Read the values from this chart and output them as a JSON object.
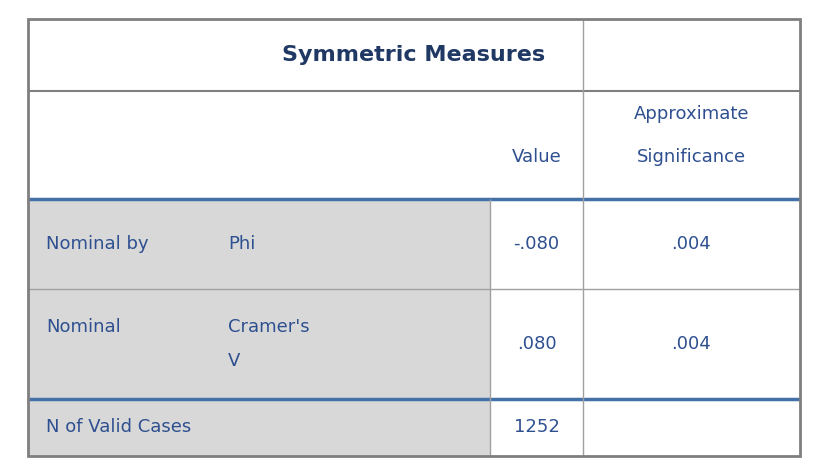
{
  "title": "Symmetric Measures",
  "title_fontsize": 16,
  "title_color": "#1F3864",
  "bg_color": "#FFFFFF",
  "gray_bg": "#D8D8D8",
  "text_color": "#2E5090",
  "border_color": "#7F7F7F",
  "divider_color_thick": "#4472A8",
  "divider_color_thin": "#A0A0A0",
  "header_approx_label": "Approximate",
  "header_value_label": "Value",
  "header_sig_label": "Significance",
  "row1_col1": "Nominal by",
  "row1_col2": "Phi",
  "row1_col3": "-.080",
  "row1_col4": ".004",
  "row2_col1": "Nominal",
  "row2_col2": "Cramer's",
  "row2b_col2": "V",
  "row2_col3": ".080",
  "row2_col4": ".004",
  "row3_col1": "N of Valid Cases",
  "row3_col3": "1252",
  "data_font_size": 13,
  "header_font_size": 13
}
